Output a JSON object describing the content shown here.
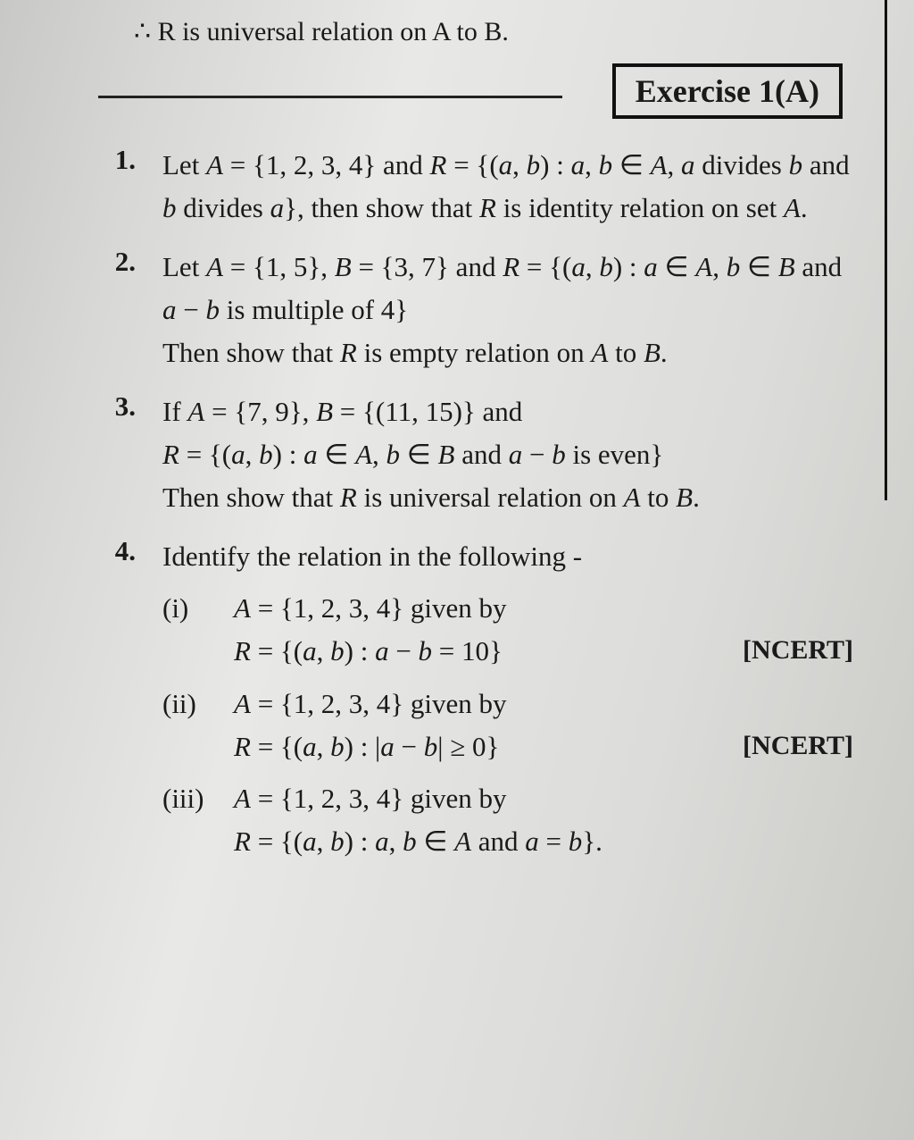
{
  "intro": "∴  R is universal relation on A to B.",
  "exercise_label": "Exercise 1(A)",
  "questions": [
    {
      "num": "1.",
      "lines": [
        "Let <span class=\"ital\">A</span> = {1, 2, 3, 4} and <span class=\"ital\">R</span> = {(<span class=\"ital\">a</span>, <span class=\"ital\">b</span>) : <span class=\"ital\">a</span>, <span class=\"ital\">b</span> ∈ <span class=\"ital\">A</span>, <span class=\"ital\">a</span> divides <span class=\"ital\">b</span> and <span class=\"ital\">b</span> divides <span class=\"ital\">a</span>}, then show that <span class=\"ital\">R</span> is identity relation on set <span class=\"ital\">A</span>."
      ]
    },
    {
      "num": "2.",
      "lines": [
        "Let <span class=\"ital\">A</span> = {1, 5}, <span class=\"ital\">B</span> = {3, 7} and <span class=\"ital\">R</span> = {(<span class=\"ital\">a</span>, <span class=\"ital\">b</span>) : <span class=\"ital\">a</span> ∈ <span class=\"ital\">A</span>, <span class=\"ital\">b</span> ∈ <span class=\"ital\">B</span> and <span class=\"ital\">a</span> − <span class=\"ital\">b</span> is multiple of 4}",
        "Then show that <span class=\"ital\">R</span> is empty relation on <span class=\"ital\">A</span> to <span class=\"ital\">B</span>."
      ]
    },
    {
      "num": "3.",
      "lines": [
        "If <span class=\"ital\">A</span> = {7, 9}, <span class=\"ital\">B</span> = {(11, 15)} and",
        "<span class=\"ital\">R</span> = {(<span class=\"ital\">a</span>, <span class=\"ital\">b</span>) : <span class=\"ital\">a</span> ∈ <span class=\"ital\">A</span>, <span class=\"ital\">b</span> ∈ <span class=\"ital\">B</span> and <span class=\"ital\">a</span> − <span class=\"ital\">b</span> is even}",
        "Then show that <span class=\"ital\">R</span> is universal relation on <span class=\"ital\">A</span> to <span class=\"ital\">B</span>."
      ]
    },
    {
      "num": "4.",
      "intro": "Identify the relation in the following -",
      "subs": [
        {
          "subnum": "(i)",
          "l1": "<span class=\"ital\">A</span> = {1, 2, 3, 4} given by",
          "l2": "<span class=\"ital\">R</span> = {(<span class=\"ital\">a</span>, <span class=\"ital\">b</span>) : <span class=\"ital\">a</span> − <span class=\"ital\">b</span> = 10}",
          "tag": "[NCERT]"
        },
        {
          "subnum": "(ii)",
          "l1": "<span class=\"ital\">A</span> = {1, 2, 3, 4} given by",
          "l2": "<span class=\"ital\">R</span> = {(<span class=\"ital\">a</span>, <span class=\"ital\">b</span>) : |<span class=\"ital\">a</span> − <span class=\"ital\">b</span>| ≥ 0}",
          "tag": "[NCERT]"
        },
        {
          "subnum": "(iii)",
          "l1": "<span class=\"ital\">A</span> = {1, 2, 3, 4} given by",
          "l2": "<span class=\"ital\">R</span> = {(<span class=\"ital\">a</span>, <span class=\"ital\">b</span>) : <span class=\"ital\">a</span>, <span class=\"ital\">b</span> ∈ <span class=\"ital\">A</span> and <span class=\"ital\">a</span> = <span class=\"ital\">b</span>}.",
          "tag": ""
        }
      ]
    }
  ]
}
